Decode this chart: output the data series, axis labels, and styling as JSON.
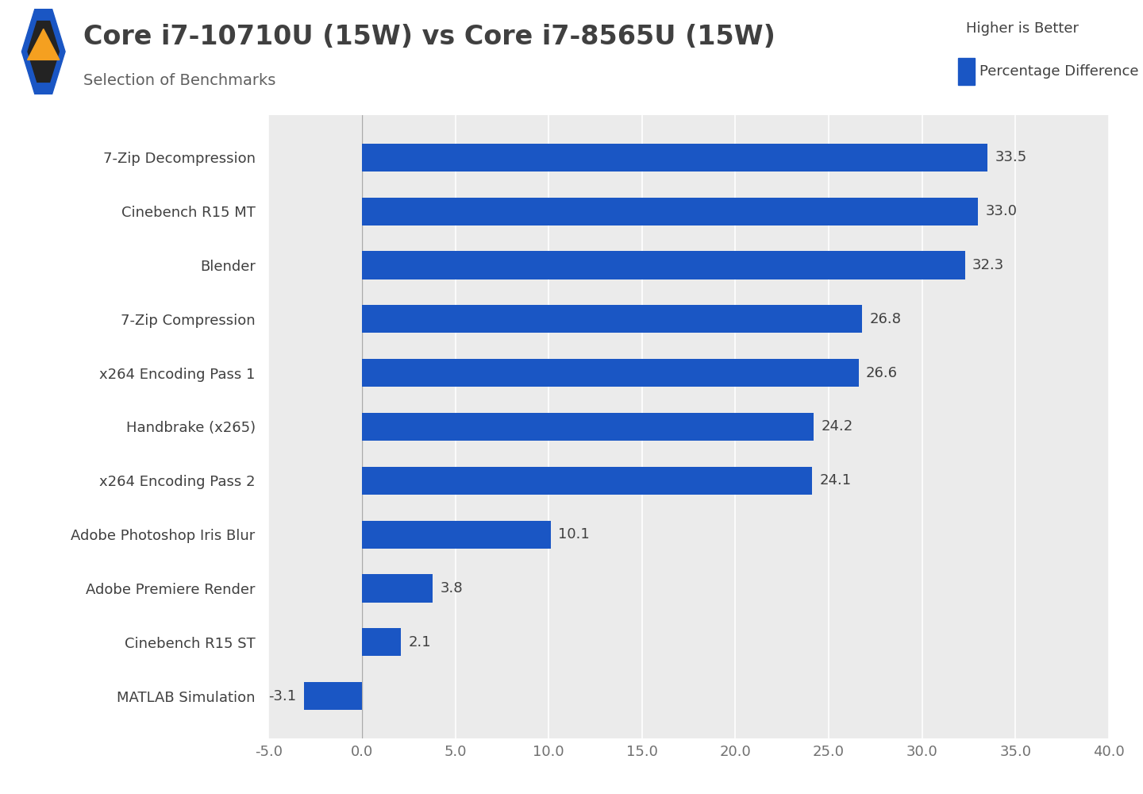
{
  "title": "Core i7-10710U (15W) vs Core i7-8565U (15W)",
  "subtitle": "Selection of Benchmarks",
  "legend_label": "Percentage Difference",
  "legend_note": "Higher is Better",
  "categories": [
    "7-Zip Decompression",
    "Cinebench R15 MT",
    "Blender",
    "7-Zip Compression",
    "x264 Encoding Pass 1",
    "Handbrake (x265)",
    "x264 Encoding Pass 2",
    "Adobe Photoshop Iris Blur",
    "Adobe Premiere Render",
    "Cinebench R15 ST",
    "MATLAB Simulation"
  ],
  "values": [
    33.5,
    33.0,
    32.3,
    26.8,
    26.6,
    24.2,
    24.1,
    10.1,
    3.8,
    2.1,
    -3.1
  ],
  "bar_color": "#1a56c4",
  "xlim": [
    -5.0,
    40.0
  ],
  "xticks": [
    -5.0,
    0.0,
    5.0,
    10.0,
    15.0,
    20.0,
    25.0,
    30.0,
    35.0,
    40.0
  ],
  "header_bg": "#ffffff",
  "chart_bg": "#ebebeb",
  "title_color": "#404040",
  "subtitle_color": "#606060",
  "tick_color": "#707070",
  "bar_height": 0.52,
  "title_fontsize": 24,
  "subtitle_fontsize": 14,
  "axis_fontsize": 13,
  "label_fontsize": 13,
  "value_fontsize": 13,
  "logo_outer_color": "#1a56c4",
  "logo_inner_color": "#232323",
  "logo_triangle_color": "#f5a020"
}
